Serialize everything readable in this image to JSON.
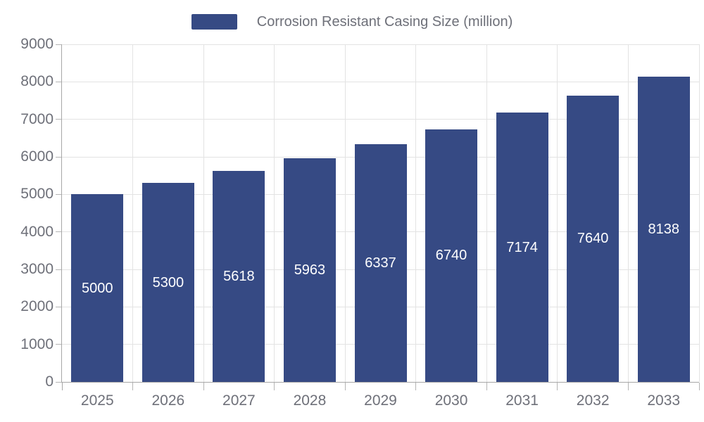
{
  "chart_data": {
    "type": "bar",
    "title": "",
    "legend": "Corrosion Resistant Casing Size (million)",
    "legend_position": "top",
    "categories": [
      "2025",
      "2026",
      "2027",
      "2028",
      "2029",
      "2030",
      "2031",
      "2032",
      "2033"
    ],
    "values": [
      5000,
      5300,
      5618,
      5963,
      6337,
      6740,
      7174,
      7640,
      8138
    ],
    "value_labels": [
      "5000",
      "5300",
      "5618",
      "5963",
      "6337",
      "6740",
      "7174",
      "7640",
      "8138"
    ],
    "xlabel": "",
    "ylabel": "",
    "ylim": [
      0,
      9000
    ],
    "ytick_interval": 1000,
    "ytick_labels": [
      "0",
      "1000",
      "2000",
      "3000",
      "4000",
      "5000",
      "6000",
      "7000",
      "8000",
      "9000"
    ],
    "grid": true,
    "colors": {
      "bar": "#364a84",
      "grid_line": "#e3e3e3",
      "axis_line": "#a7a7a7",
      "tick_line": "#b5b5b5",
      "axis_label": "#6e7079",
      "legend_text": "#6e7079",
      "value_label": "#ffffff"
    }
  }
}
